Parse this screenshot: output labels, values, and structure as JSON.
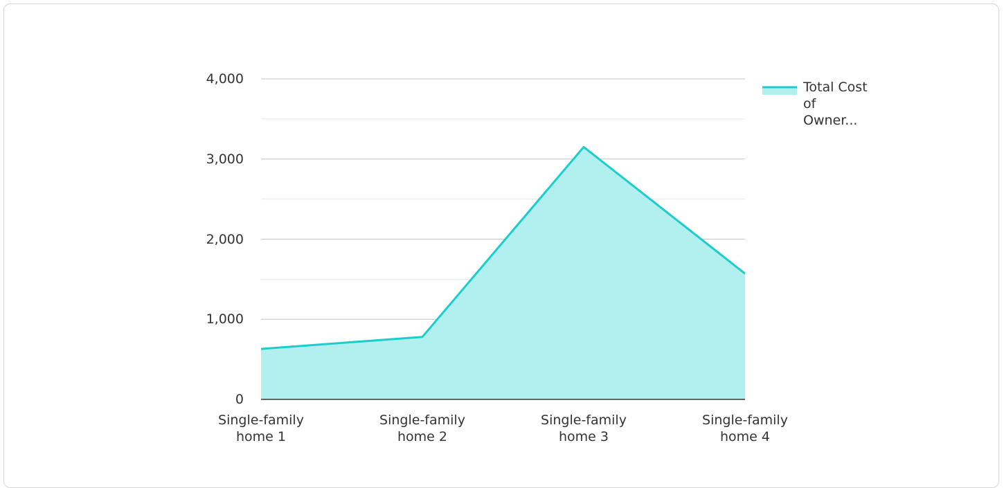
{
  "chart_data": {
    "type": "area",
    "categories": [
      "Single-family home 1",
      "Single-family home 2",
      "Single-family home 3",
      "Single-family home 4"
    ],
    "series": [
      {
        "name": "Total Cost of Owner...",
        "color": "#1ccdcd",
        "fill": "#b2efef",
        "values": [
          630,
          780,
          3150,
          1570
        ]
      }
    ],
    "ylim": [
      0,
      4000
    ],
    "yticks": [
      0,
      {
        "value": 1000,
        "label": "1,000"
      },
      {
        "value": 2000,
        "label": "2,000"
      },
      {
        "value": 3000,
        "label": "3,000"
      },
      {
        "value": 4000,
        "label": "4,000"
      }
    ],
    "minor_yticks": [
      500,
      1500,
      2500,
      3500
    ],
    "grid": true,
    "legend": "right"
  }
}
